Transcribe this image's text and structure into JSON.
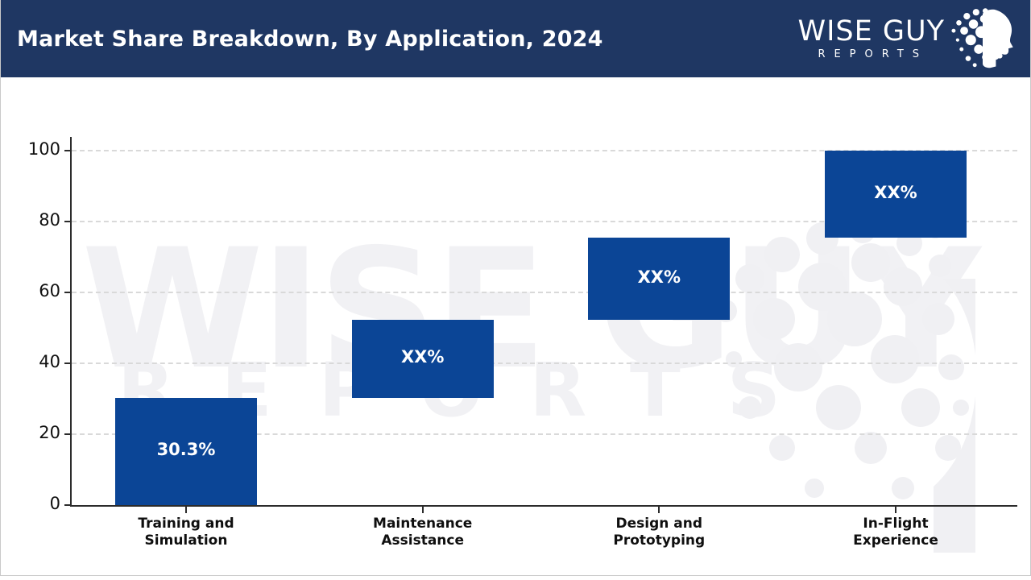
{
  "header": {
    "title": "Market Share Breakdown, By Application, 2024",
    "logo": {
      "wordmark": "WISE GUY",
      "subtext": "REPORTS"
    }
  },
  "watermark": {
    "line1": "WISE GUY",
    "line2": "REPORTS"
  },
  "icons": {
    "logo_face": "dotted-face-profile",
    "watermark_face": "dotted-face-profile"
  },
  "colors": {
    "header_bg": "#1f3763",
    "bar": "#0b4596",
    "axis": "#2b2b2b",
    "gridline": "#d9d9d9",
    "watermark": "#f1f1f4",
    "background": "#ffffff",
    "bar_label": "#ffffff",
    "tick_label": "#111111"
  },
  "chart_data": {
    "type": "bar",
    "variant": "waterfall",
    "title": "Market Share Breakdown, By Application, 2024",
    "xlabel": "",
    "ylabel": "",
    "ylim": [
      0,
      100
    ],
    "y_ticks": [
      0,
      20,
      40,
      60,
      80,
      100
    ],
    "grid": "horizontal-dashed",
    "legend": "none",
    "bar_color": "#0b4596",
    "bar_label_color": "#ffffff",
    "categories": [
      "Training and Simulation",
      "Maintenance Assistance",
      "Design and Prototyping",
      "In-Flight Experience"
    ],
    "category_label_lines": [
      [
        "Training and",
        "Simulation"
      ],
      [
        "Maintenance",
        "Assistance"
      ],
      [
        "Design and",
        "Prototyping"
      ],
      [
        "In-Flight",
        "Experience"
      ]
    ],
    "segments": [
      {
        "category": "Training and Simulation",
        "start": 0,
        "end": 30.3,
        "label": "30.3%"
      },
      {
        "category": "Maintenance Assistance",
        "start": 30.3,
        "end": 52.3,
        "label": "XX%"
      },
      {
        "category": "Design and Prototyping",
        "start": 52.3,
        "end": 75.5,
        "label": "XX%"
      },
      {
        "category": "In-Flight Experience",
        "start": 75.5,
        "end": 100,
        "label": "XX%"
      }
    ]
  }
}
